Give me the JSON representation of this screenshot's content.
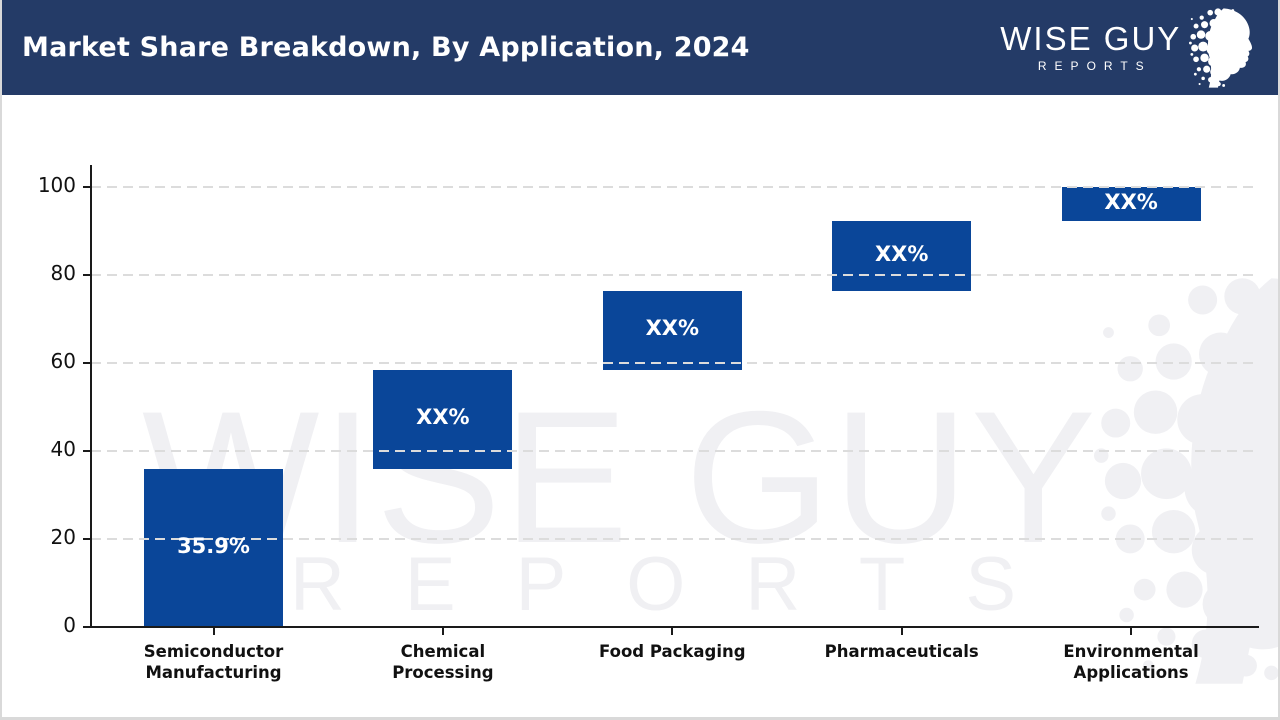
{
  "header": {
    "title": "Market Share Breakdown, By Application, 2024",
    "logo": {
      "name": "WISE GUY",
      "sub": "REPORTS"
    }
  },
  "watermark": {
    "name": "WISE GUY",
    "sub": "REPORTS"
  },
  "chart_data": {
    "type": "bar",
    "subtype": "waterfall",
    "title": "Market Share Breakdown, By Application, 2024",
    "xlabel": "",
    "ylabel": "",
    "categories": [
      "Semiconductor Manufacturing",
      "Chemical Processing",
      "Food Packaging",
      "Pharmaceuticals",
      "Environmental Applications"
    ],
    "category_lines": [
      [
        "Semiconductor",
        "Manufacturing"
      ],
      [
        "Chemical",
        "Processing"
      ],
      [
        "Food Packaging"
      ],
      [
        "Pharmaceuticals"
      ],
      [
        "Environmental",
        "Applications"
      ]
    ],
    "segments": [
      {
        "category": "Semiconductor Manufacturing",
        "label": "35.9%",
        "start": 0,
        "end": 35.9
      },
      {
        "category": "Chemical Processing",
        "label": "XX%",
        "start": 35.9,
        "end": 58.5
      },
      {
        "category": "Food Packaging",
        "label": "XX%",
        "start": 58.5,
        "end": 76.4
      },
      {
        "category": "Pharmaceuticals",
        "label": "XX%",
        "start": 76.4,
        "end": 92.3
      },
      {
        "category": "Environmental Applications",
        "label": "XX%",
        "start": 92.3,
        "end": 100
      }
    ],
    "yticks": [
      0,
      20,
      40,
      60,
      80,
      100
    ],
    "ylim": [
      0,
      105
    ],
    "grid": "dashed horizontal",
    "legend": "none"
  },
  "colors": {
    "header_bg": "#243b67",
    "bar": "#0a4699",
    "bar_label": "#ffffff",
    "axis": "#1a1a1a",
    "text": "#111111",
    "grid": "#dcdcdc",
    "watermark": "#f0f0f3",
    "page_bg": "#ffffff",
    "frame_border": "#d9d9d9"
  }
}
